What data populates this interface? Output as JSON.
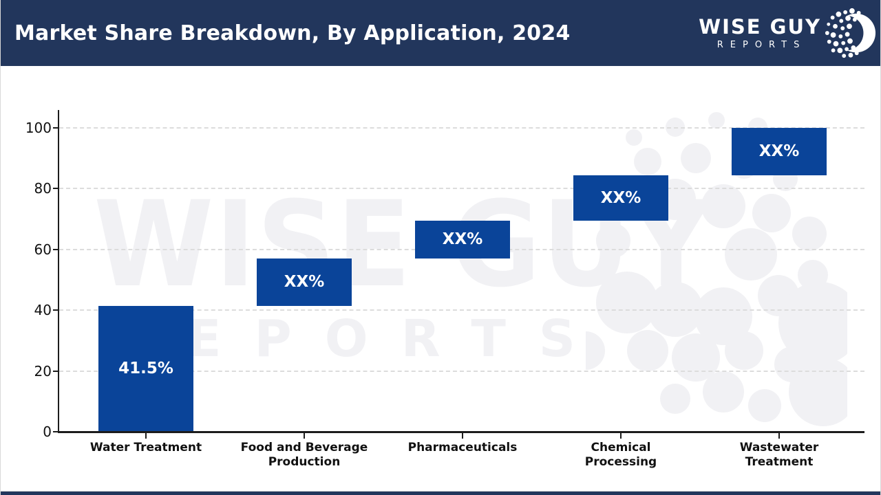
{
  "header": {
    "title": "Market Share Breakdown, By Application, 2024",
    "logo": {
      "line1": "WISE GUY",
      "line2": "REPORTS"
    }
  },
  "watermark": {
    "line1": "WISE GUY",
    "line2": "REPORTS"
  },
  "colors": {
    "header_bg": "#22365c",
    "bar": "#0a4499",
    "bar_label": "#ffffff",
    "grid": "#dcdcdc",
    "axis": "#1c1c1c",
    "watermark": "#f1f1f4"
  },
  "chart_data": {
    "type": "bar",
    "subtype": "waterfall",
    "title": "Market Share Breakdown, By Application, 2024",
    "xlabel": "",
    "ylabel": "",
    "ylim": [
      0,
      100
    ],
    "yticks": [
      0,
      20,
      40,
      60,
      80,
      100
    ],
    "grid": "horizontal-dashed",
    "legend": "none",
    "categories": [
      [
        "Water Treatment"
      ],
      [
        "Food and Beverage",
        "Production"
      ],
      [
        "Pharmaceuticals"
      ],
      [
        "Chemical",
        "Processing"
      ],
      [
        "Wastewater",
        "Treatment"
      ]
    ],
    "series": [
      {
        "name": "Market Share (%)",
        "segments": [
          {
            "category": "Water Treatment",
            "start": 0,
            "end": 41.5,
            "label": "41.5%"
          },
          {
            "category": "Food and Beverage Production",
            "start": 41.5,
            "end": 57,
            "label": "XX%"
          },
          {
            "category": "Pharmaceuticals",
            "start": 57,
            "end": 69.5,
            "label": "XX%"
          },
          {
            "category": "Chemical Processing",
            "start": 69.5,
            "end": 84.5,
            "label": "XX%"
          },
          {
            "category": "Wastewater Treatment",
            "start": 84.5,
            "end": 100,
            "label": "XX%"
          }
        ]
      }
    ]
  }
}
